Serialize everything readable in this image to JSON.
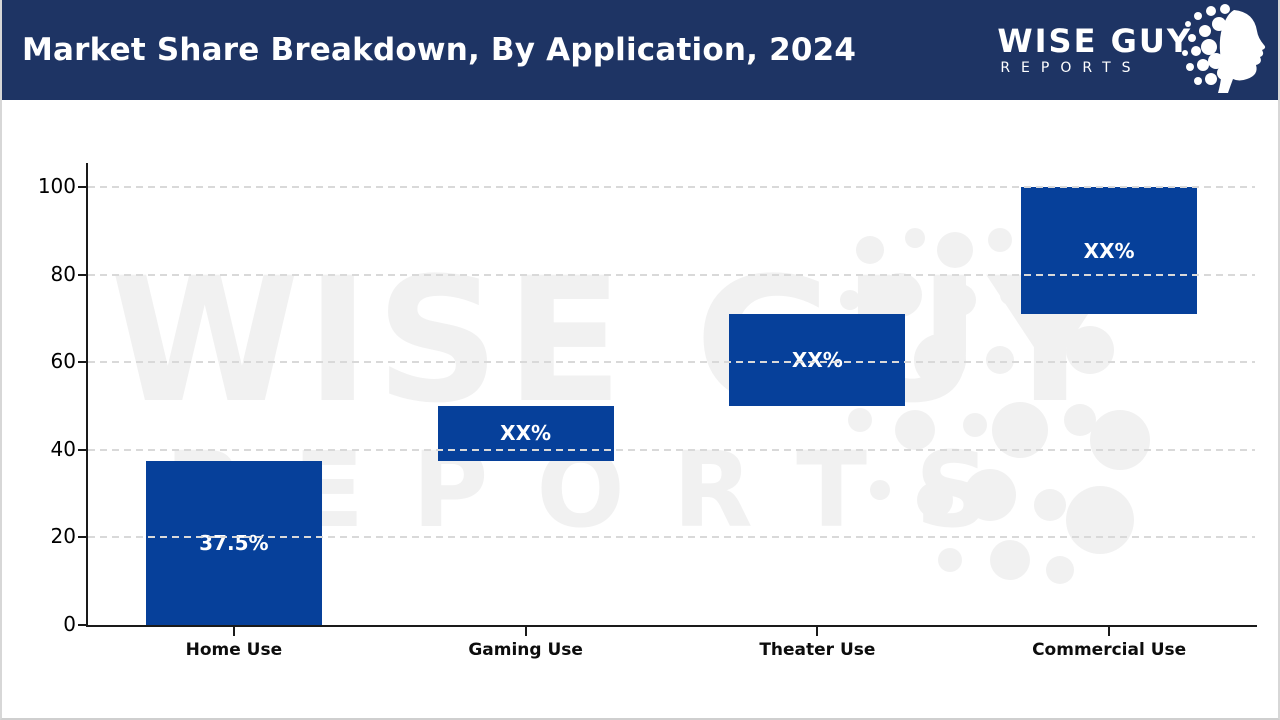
{
  "header": {
    "title": "Market Share Breakdown, By Application, 2024",
    "logo": {
      "line1": "WISE GUY",
      "line2": "REPORTS"
    }
  },
  "watermark": {
    "line1": "WISE GUY",
    "line2": "REPORTS"
  },
  "chart_data": {
    "type": "bar",
    "subtype": "waterfall",
    "title": "Market Share Breakdown, By Application, 2024",
    "categories": [
      "Home Use",
      "Gaming Use",
      "Theater Use",
      "Commercial Use"
    ],
    "segments": [
      {
        "category": "Home Use",
        "start": 0,
        "end": 37.5,
        "label": "37.5%"
      },
      {
        "category": "Gaming Use",
        "start": 37.5,
        "end": 50,
        "label": "XX%"
      },
      {
        "category": "Theater Use",
        "start": 50,
        "end": 71,
        "label": "XX%"
      },
      {
        "category": "Commercial Use",
        "start": 71,
        "end": 100,
        "label": "XX%"
      }
    ],
    "xlabel": "",
    "ylabel": "",
    "yticks": [
      0,
      20,
      40,
      60,
      80,
      100
    ],
    "ylim": [
      0,
      105
    ],
    "grid": "horizontal-dashed-above-bars",
    "legend": "none",
    "bar_color": "#06409a",
    "value_label_color": "#ffffff"
  },
  "colors": {
    "header_bg": "#1e3464",
    "bar": "#06409a",
    "gridline": "#d9d9d9",
    "axis": "#1a1a1a",
    "watermark": "#f1f1f1",
    "frame_border": "#d7d7d7"
  }
}
